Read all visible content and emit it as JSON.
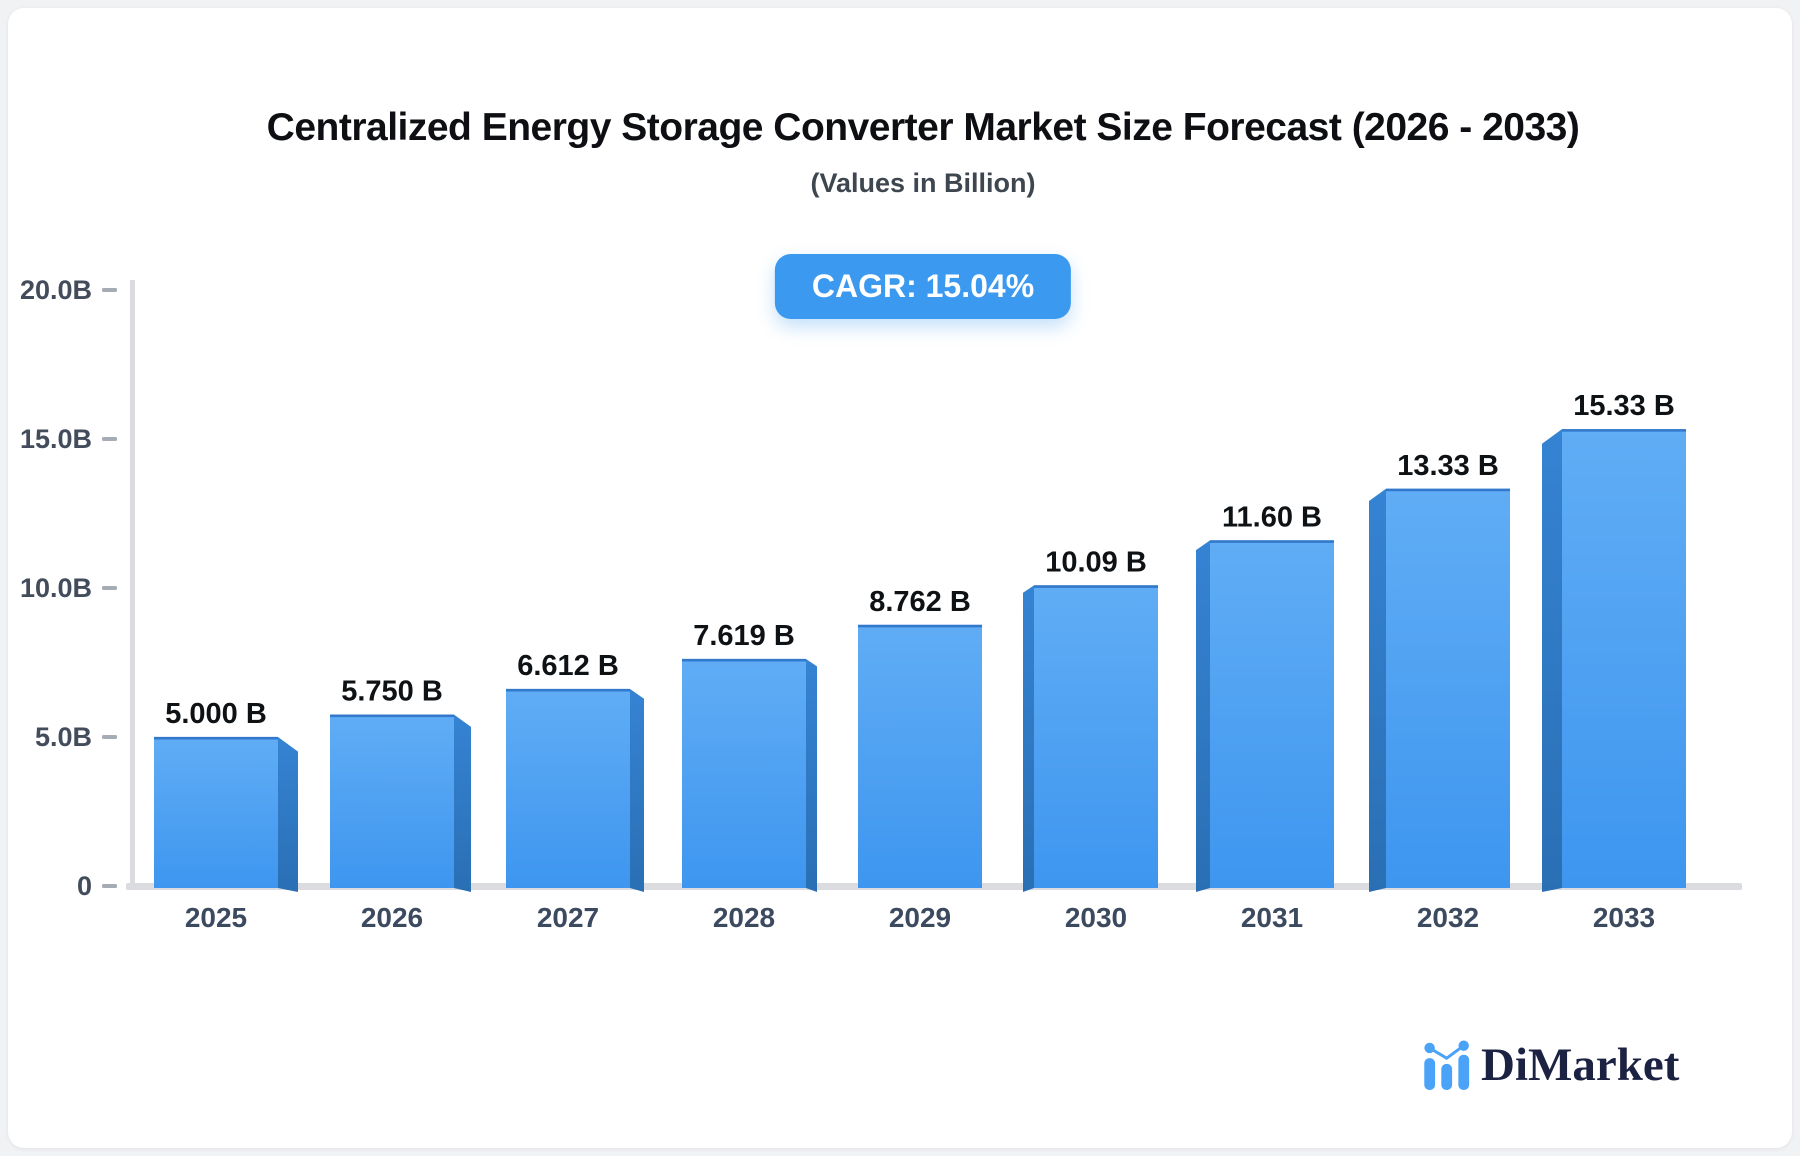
{
  "page": {
    "title": "Centralized Energy Storage Converter Market Size Forecast (2026 - 2033)",
    "subtitle": "(Values in Billion)",
    "cagr_badge": "CAGR: 15.04%",
    "brand": {
      "name": "DiMarket",
      "icon": "dimarket-bar-chart-icon"
    }
  },
  "colors": {
    "badge_bg": "#3b99f0",
    "bar_face_top": "#60adf5",
    "bar_face_bottom": "#3e96ef",
    "bar_top_edge": "#3379cb",
    "bar_side": "#2e77c1",
    "axis_line": "#dadce0",
    "tick_mark": "#a6acb5",
    "y_label": "#434c5b",
    "x_label": "#3c4a60",
    "value_label": "#0f1215",
    "brand_navy": "#1c2342",
    "brand_blue": "#4aa3f7",
    "page_bg": "#f1f2f4",
    "card_bg": "#ffffff"
  },
  "chart_data": {
    "type": "bar",
    "title": "Centralized Energy Storage Converter Market Size Forecast (2026 - 2033)",
    "subtitle": "(Values in Billion)",
    "cagr_percent": 15.04,
    "categories": [
      "2025",
      "2026",
      "2027",
      "2028",
      "2029",
      "2030",
      "2031",
      "2032",
      "2033"
    ],
    "values": [
      5.0,
      5.75,
      6.612,
      7.619,
      8.762,
      10.09,
      11.6,
      13.33,
      15.33
    ],
    "value_labels": [
      "5.000 B",
      "5.750 B",
      "6.612 B",
      "7.619 B",
      "8.762 B",
      "10.09 B",
      "11.60 B",
      "13.33 B",
      "15.33 B"
    ],
    "unit": "Billion",
    "ylim": [
      0,
      20
    ],
    "ytick_values": [
      20,
      15,
      10,
      5,
      0
    ],
    "ytick_labels": [
      "20.0B",
      "15.0B",
      "10.0B",
      "5.0B",
      "0"
    ],
    "grid": false,
    "legend": false,
    "style": "3d-perspective-bars-center-vanishing"
  }
}
